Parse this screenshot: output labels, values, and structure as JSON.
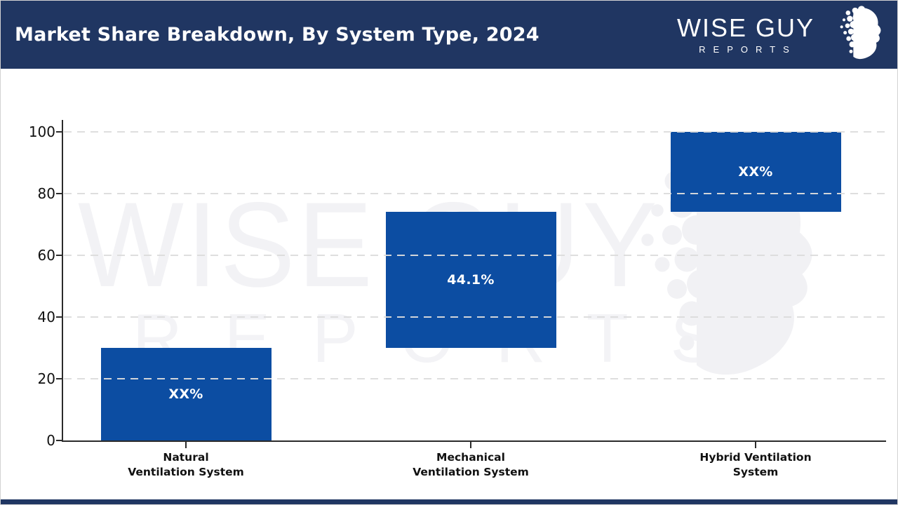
{
  "header": {
    "title": "Market Share Breakdown, By System Type, 2024",
    "logo": {
      "line1": "WISE GUY",
      "line2": "REPORTS"
    }
  },
  "watermark": {
    "line1": "WISE GUY",
    "line2": "REPORTS"
  },
  "colors": {
    "header_bg": "#203662",
    "footer_bg": "#203662",
    "bar": "#0c4da2",
    "axis": "#2b2b2b",
    "gridline": "#dcdcdc",
    "watermark": "#f2f2f5",
    "value_label": "#ffffff"
  },
  "chart_data": {
    "type": "bar",
    "subtype": "floating-segment-bars",
    "title": "Market Share Breakdown, By System Type, 2024",
    "categories": [
      "Natural Ventilation System",
      "Mechanical Ventilation System",
      "Hybrid Ventilation System"
    ],
    "bars": [
      {
        "label_lines": [
          "Natural",
          "Ventilation System"
        ],
        "start": 0,
        "end": 30,
        "value_label": "XX%"
      },
      {
        "label_lines": [
          "Mechanical",
          "Ventilation System"
        ],
        "start": 30,
        "end": 74.1,
        "value_label": "44.1%"
      },
      {
        "label_lines": [
          "Hybrid Ventilation",
          "System"
        ],
        "start": 74.1,
        "end": 100,
        "value_label": "XX%"
      }
    ],
    "y_ticks": [
      0,
      20,
      40,
      60,
      80,
      100
    ],
    "ylim": [
      0,
      104
    ],
    "xlabel": "",
    "ylabel": "",
    "grid": "horizontal-dashed",
    "legend": "none"
  }
}
